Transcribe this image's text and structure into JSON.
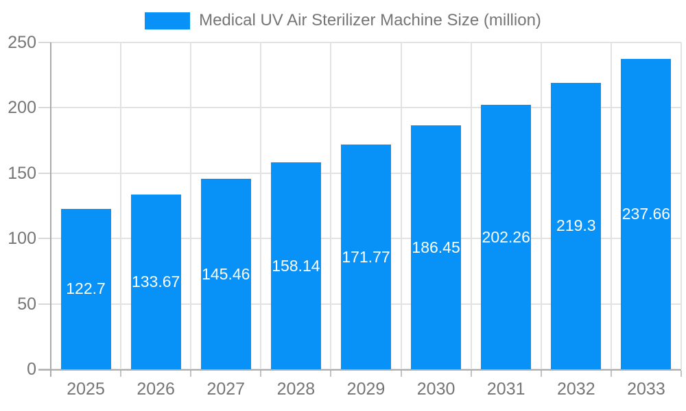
{
  "chart_data": {
    "type": "bar",
    "title": "Medical UV Air Sterilizer Machine Size (million)",
    "categories": [
      "2025",
      "2026",
      "2027",
      "2028",
      "2029",
      "2030",
      "2031",
      "2032",
      "2033"
    ],
    "values": [
      122.7,
      133.67,
      145.46,
      158.14,
      171.77,
      186.45,
      202.26,
      219.3,
      237.66
    ],
    "value_labels": [
      "122.7",
      "133.67",
      "145.46",
      "158.14",
      "171.77",
      "186.45",
      "202.26",
      "219.3",
      "237.66"
    ],
    "xlabel": "",
    "ylabel": "",
    "ylim": [
      0,
      250
    ],
    "yticks": [
      0,
      50,
      100,
      150,
      200,
      250
    ],
    "ytick_labels": [
      "0",
      "50",
      "100",
      "150",
      "200",
      "250"
    ],
    "grid": true,
    "legend_position": "top",
    "bar_color": "#0892f8",
    "value_label_color": "#ffffff",
    "axis_text_color": "#757575"
  }
}
